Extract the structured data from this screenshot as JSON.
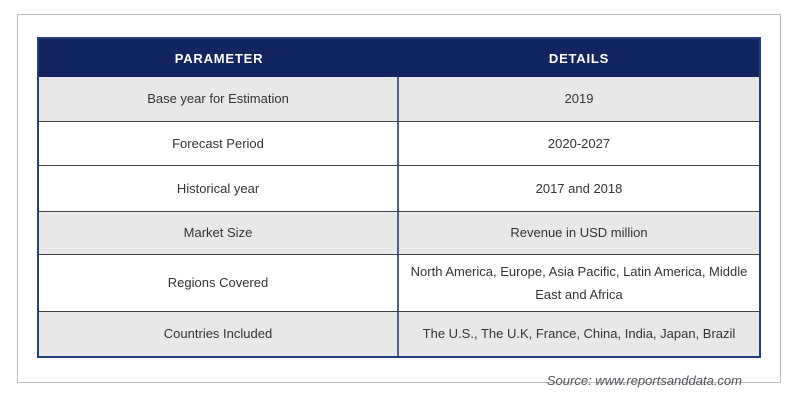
{
  "chart_data": {
    "type": "table",
    "title": "",
    "columns": [
      "PARAMETER",
      "DETAILS"
    ],
    "rows": [
      [
        "Base year for Estimation",
        "2019"
      ],
      [
        "Forecast Period",
        "2020-2027"
      ],
      [
        "Historical year",
        "2017 and 2018"
      ],
      [
        "Market Size",
        "Revenue in USD million"
      ],
      [
        "Regions Covered",
        "North America, Europe, Asia Pacific, Latin America, Middle East and Africa"
      ],
      [
        "Countries Included",
        "The U.S., The  U.K, France, China, India, Japan, Brazil"
      ]
    ],
    "shaded_row_indexes": [
      0,
      3,
      5
    ],
    "source": "Source: www.reportsanddata.com"
  },
  "colors": {
    "header_bg": "#132560",
    "header_text": "#ffffff",
    "row_shaded_bg": "#e8e8e8",
    "row_plain_bg": "#ffffff",
    "table_outer_border": "#23407e",
    "column_divider": "#51618e",
    "row_divider": "#3f4248",
    "frame_border": "#bdbdbd",
    "cell_text": "#333338",
    "source_text": "#53555c"
  }
}
